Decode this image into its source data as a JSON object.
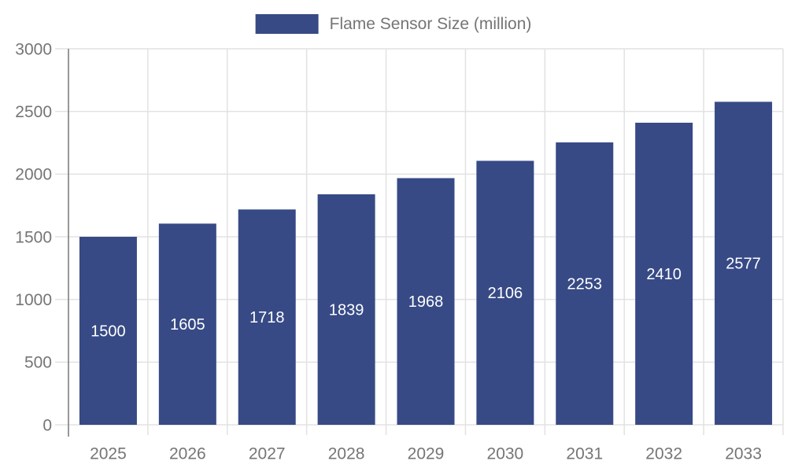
{
  "legend": {
    "label": "Flame Sensor Size (million)"
  },
  "colors": {
    "bar": "#374a86",
    "bar_label": "#ffffff",
    "axis_text": "#757575",
    "grid": "#e2e2e2",
    "axis_line": "#8c8c8c"
  },
  "chart_data": {
    "type": "bar",
    "title": "Flame Sensor Size (million)",
    "categories": [
      "2025",
      "2026",
      "2027",
      "2028",
      "2029",
      "2030",
      "2031",
      "2032",
      "2033"
    ],
    "series": [
      {
        "name": "Flame Sensor Size (million)",
        "values": [
          1500,
          1605,
          1718,
          1839,
          1968,
          2106,
          2253,
          2410,
          2577
        ]
      }
    ],
    "xlabel": "",
    "ylabel": "",
    "ylim": [
      0,
      3000
    ],
    "ytick_step": 500,
    "grid": true,
    "legend_position": "top",
    "value_labels": "inside-center"
  }
}
